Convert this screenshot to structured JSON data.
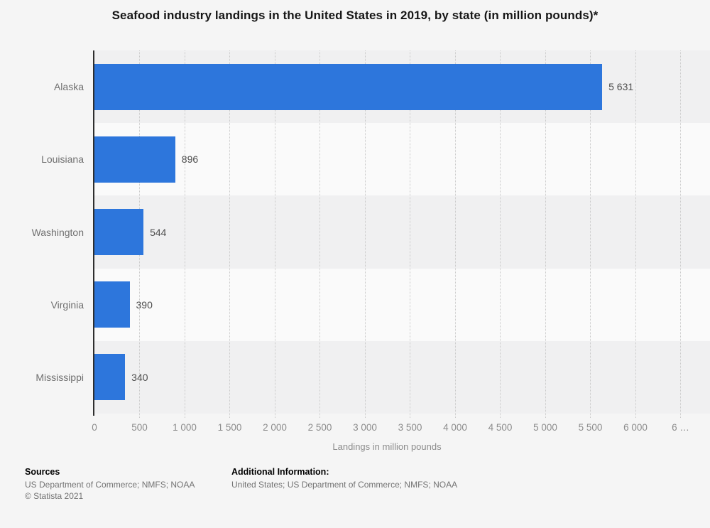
{
  "chart_data": {
    "type": "bar",
    "orientation": "horizontal",
    "title": "Seafood industry landings in the United States in 2019, by state (in million pounds)*",
    "categories": [
      "Alaska",
      "Louisiana",
      "Washington",
      "Virginia",
      "Mississippi"
    ],
    "values": [
      5631,
      896,
      544,
      390,
      340
    ],
    "value_labels": [
      "5 631",
      "896",
      "544",
      "390",
      "340"
    ],
    "xlabel": "Landings in million pounds",
    "ylabel": "",
    "xlim": [
      0,
      6827
    ],
    "xticks": [
      0,
      500,
      1000,
      1500,
      2000,
      2500,
      3000,
      3500,
      4000,
      4500,
      5000,
      5500,
      6000,
      6500
    ],
    "xtick_labels": [
      "0",
      "500",
      "1 000",
      "1 500",
      "2 000",
      "2 500",
      "3 000",
      "3 500",
      "4 000",
      "4 500",
      "5 000",
      "5 500",
      "6 000",
      "6 …"
    ],
    "grid": "vertical-dotted",
    "legend": "none",
    "bar_color": "#2d76dc",
    "band_colors": [
      "#f0f0f1",
      "#fafafa"
    ],
    "page_background": "#f5f5f5"
  },
  "footer": {
    "sources_heading": "Sources",
    "sources_line": "US Department of Commerce; NMFS; NOAA",
    "copyright": "© Statista 2021",
    "additional_heading": "Additional Information:",
    "additional_line": "United States; US Department of Commerce; NMFS; NOAA"
  }
}
